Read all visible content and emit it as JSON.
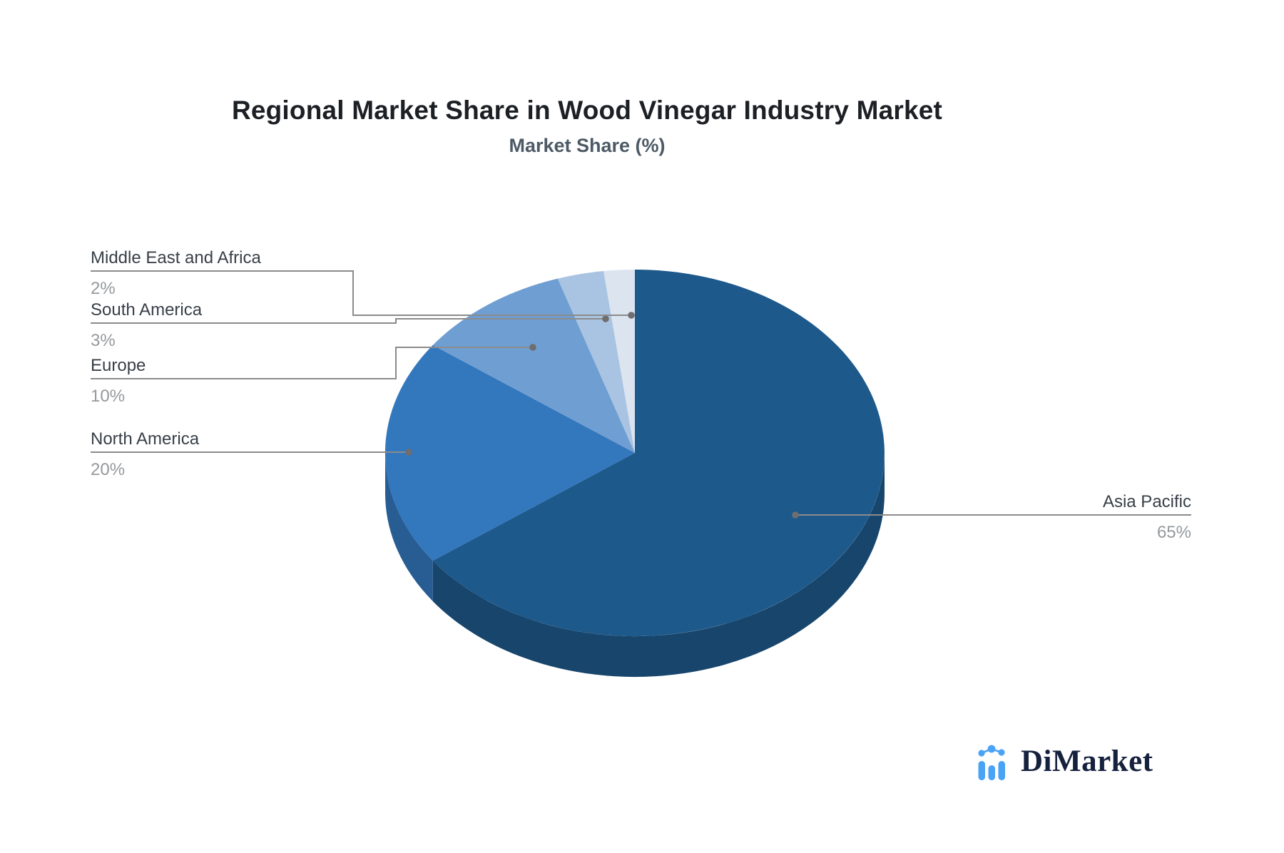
{
  "chart": {
    "title": "Regional Market Share in Wood Vinegar Industry Market",
    "subtitle": "Market Share (%)"
  },
  "chart_data": {
    "type": "pie",
    "style": "3d",
    "title": "Regional Market Share in Wood Vinegar Industry Market",
    "subtitle": "Market Share (%)",
    "unit": "percent",
    "start_angle_deg": 0,
    "direction": "clockwise",
    "labels_position": "external-callouts",
    "legend": "none",
    "slices": [
      {
        "label": "Asia Pacific",
        "value": 65,
        "value_label": "65%",
        "color": "#1e598b"
      },
      {
        "label": "North America",
        "value": 20,
        "value_label": "20%",
        "color": "#3377bd"
      },
      {
        "label": "Europe",
        "value": 10,
        "value_label": "10%",
        "color": "#6f9ed3"
      },
      {
        "label": "South America",
        "value": 3,
        "value_label": "3%",
        "color": "#a9c4e2"
      },
      {
        "label": "Middle East and Africa",
        "value": 2,
        "value_label": "2%",
        "color": "#dce4f0"
      }
    ],
    "callout_line_color": "#8b8b8b",
    "callout_dot_color": "#6e6e6e",
    "label_color": "#373f47",
    "percent_color": "#95999d"
  },
  "logo": {
    "text": "DiMarket",
    "icon": "bar-chart-trend-icon",
    "icon_color": "#4aa3f5",
    "text_color": "#16213e"
  }
}
